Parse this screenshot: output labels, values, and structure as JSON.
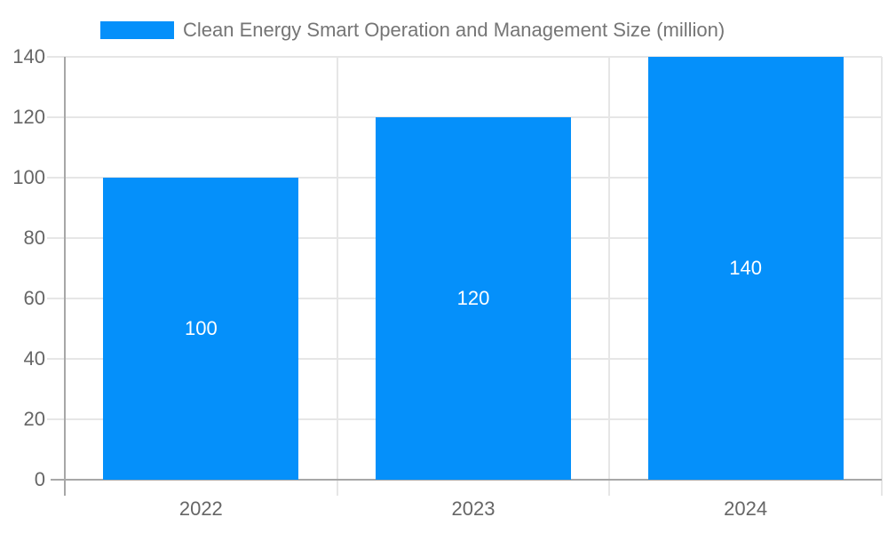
{
  "legend": {
    "label": "Clean Energy Smart Operation and Management Size (million)"
  },
  "colors": {
    "bar": "#0590fa",
    "axis_line": "#a7a7a7",
    "gridline": "#e6e6e6",
    "axis_text": "#666666",
    "legend_text": "#757575",
    "bar_label_text": "#ffffff",
    "background": "#ffffff"
  },
  "chart_data": {
    "type": "bar",
    "title": "",
    "series_name": "Clean Energy Smart Operation and Management Size (million)",
    "categories": [
      "2022",
      "2023",
      "2024"
    ],
    "values": [
      100,
      120,
      140
    ],
    "bar_labels": [
      "100",
      "120",
      "140"
    ],
    "xlabel": "",
    "ylabel": "",
    "ylim": [
      0,
      140
    ],
    "yticks": [
      0,
      20,
      40,
      60,
      80,
      100,
      120,
      140
    ],
    "grid": true,
    "legend_position": "top",
    "bar_label_position": "inside-center"
  }
}
